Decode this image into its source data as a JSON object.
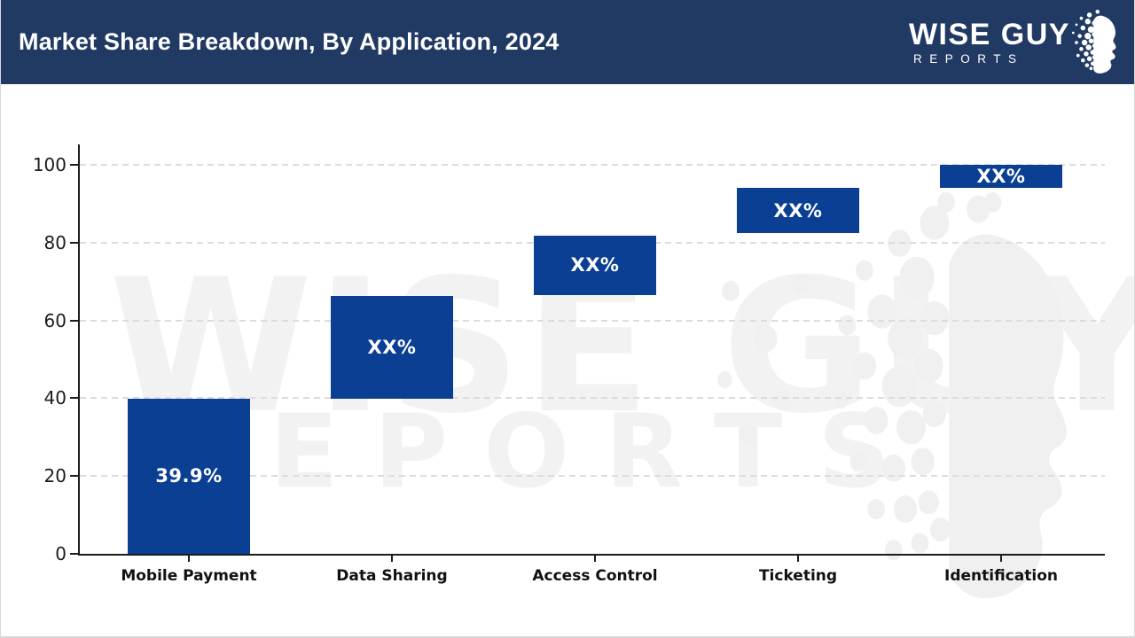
{
  "header": {
    "title": "Market Share Breakdown, By Application, 2024",
    "bg_color": "#213A64",
    "logo": {
      "line1": "WISE GUY",
      "line2": "REPORTS"
    }
  },
  "watermark": {
    "line1": "WISE GUY",
    "line2": "REPORTS"
  },
  "chart_data": {
    "type": "bar",
    "subtype": "waterfall",
    "title": "Market Share Breakdown, By Application, 2024",
    "categories": [
      "Mobile Payment",
      "Data Sharing",
      "Access Control",
      "Ticketing",
      "Identification"
    ],
    "series": [
      {
        "name": "Market Share (%)",
        "segments": [
          {
            "category": "Mobile Payment",
            "start": 0,
            "end": 39.9,
            "label": "39.9%"
          },
          {
            "category": "Data Sharing",
            "start": 39.9,
            "end": 66.4,
            "label": "XX%"
          },
          {
            "category": "Access Control",
            "start": 66.6,
            "end": 81.8,
            "label": "XX%"
          },
          {
            "category": "Ticketing",
            "start": 82.4,
            "end": 94.0,
            "label": "XX%"
          },
          {
            "category": "Identification",
            "start": 94.0,
            "end": 100.0,
            "label": "XX%"
          }
        ]
      }
    ],
    "xlabel": "",
    "ylabel": "",
    "ylim": [
      0,
      100
    ],
    "y_ticks": [
      0,
      20,
      40,
      60,
      80,
      100
    ],
    "grid": "dashed horizontal, light gray",
    "legend": "none",
    "bar_color": "#0B3F94",
    "bar_label_color": "#FFFFFF",
    "axis_color": "#1c1c1c"
  }
}
